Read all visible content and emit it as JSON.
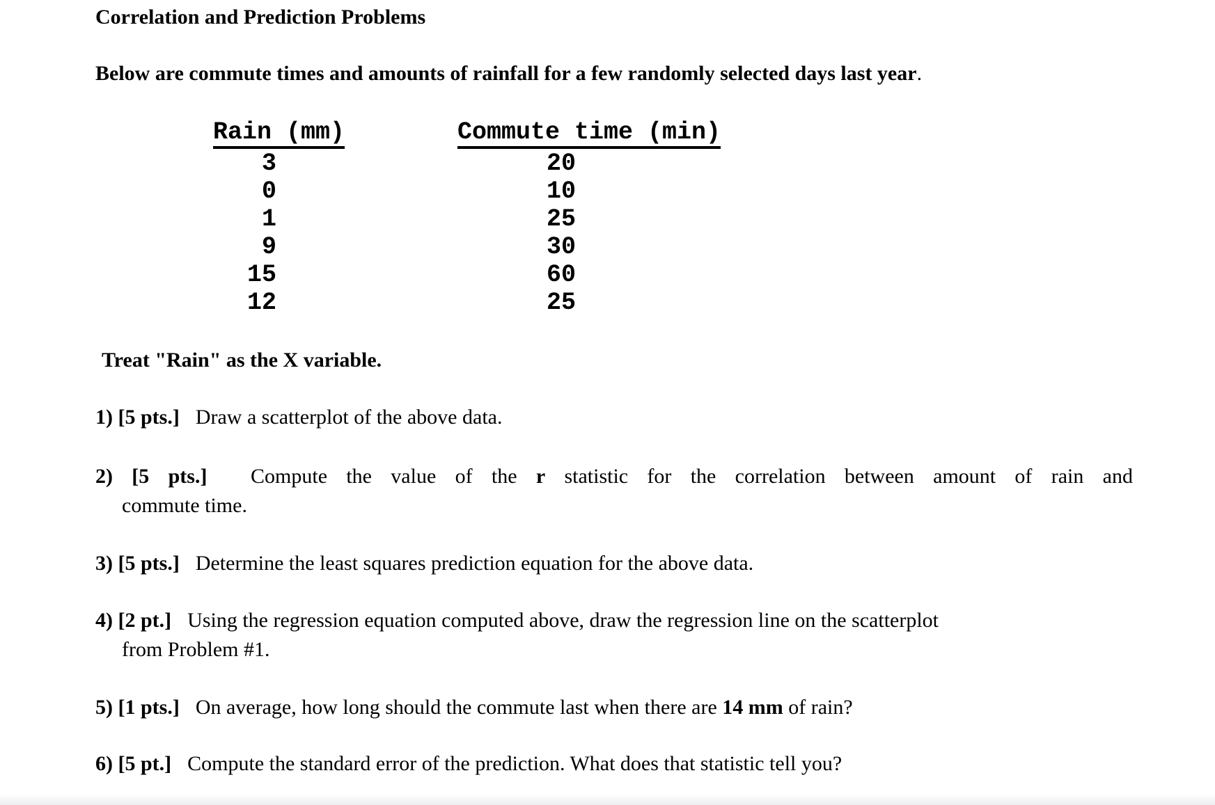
{
  "page": {
    "title": "Correlation and Prediction Problems",
    "intro_bold": "Below are commute times and amounts of rainfall for a few randomly selected days last year",
    "intro_tail": ".",
    "treat_note": "Treat \"Rain\" as the X variable."
  },
  "data_table": {
    "columns": [
      {
        "id": "rain",
        "header": "Rain (mm)",
        "values": [
          "3",
          "0",
          "1",
          "9",
          "15",
          "12"
        ]
      },
      {
        "id": "commute",
        "header": "Commute time (min)",
        "values": [
          "20",
          "10",
          "25",
          "30",
          "60",
          "25"
        ]
      }
    ]
  },
  "problems": [
    {
      "label": "1) [5 pts.]",
      "justify_first_line": false,
      "lines": [
        [
          {
            "bold": false,
            "text": "Draw a scatterplot of the above data."
          }
        ]
      ]
    },
    {
      "label": "2) [5 pts.]",
      "justify_first_line": true,
      "lines": [
        [
          {
            "bold": false,
            "text": "Compute the value of the "
          },
          {
            "bold": true,
            "text": "r"
          },
          {
            "bold": false,
            "text": " statistic for the correlation between amount of rain and"
          }
        ],
        [
          {
            "bold": false,
            "text": "commute time."
          }
        ]
      ]
    },
    {
      "label": "3) [5 pts.]",
      "justify_first_line": false,
      "lines": [
        [
          {
            "bold": false,
            "text": "Determine the least squares prediction equation for the above data."
          }
        ]
      ]
    },
    {
      "label": "4) [2 pt.]",
      "justify_first_line": false,
      "lines": [
        [
          {
            "bold": false,
            "text": "Using the regression equation computed above, draw the regression line on the scatterplot"
          }
        ],
        [
          {
            "bold": false,
            "text": "from Problem #1."
          }
        ]
      ]
    },
    {
      "label": "5) [1 pts.]",
      "justify_first_line": false,
      "lines": [
        [
          {
            "bold": false,
            "text": "On average, how long should the commute last when there are "
          },
          {
            "bold": true,
            "text": "14 mm"
          },
          {
            "bold": false,
            "text": " of rain?"
          }
        ]
      ]
    },
    {
      "label": "6) [5 pt.]",
      "justify_first_line": false,
      "lines": [
        [
          {
            "bold": false,
            "text": "Compute the standard error of the prediction. What does that statistic tell you?"
          }
        ]
      ]
    }
  ]
}
